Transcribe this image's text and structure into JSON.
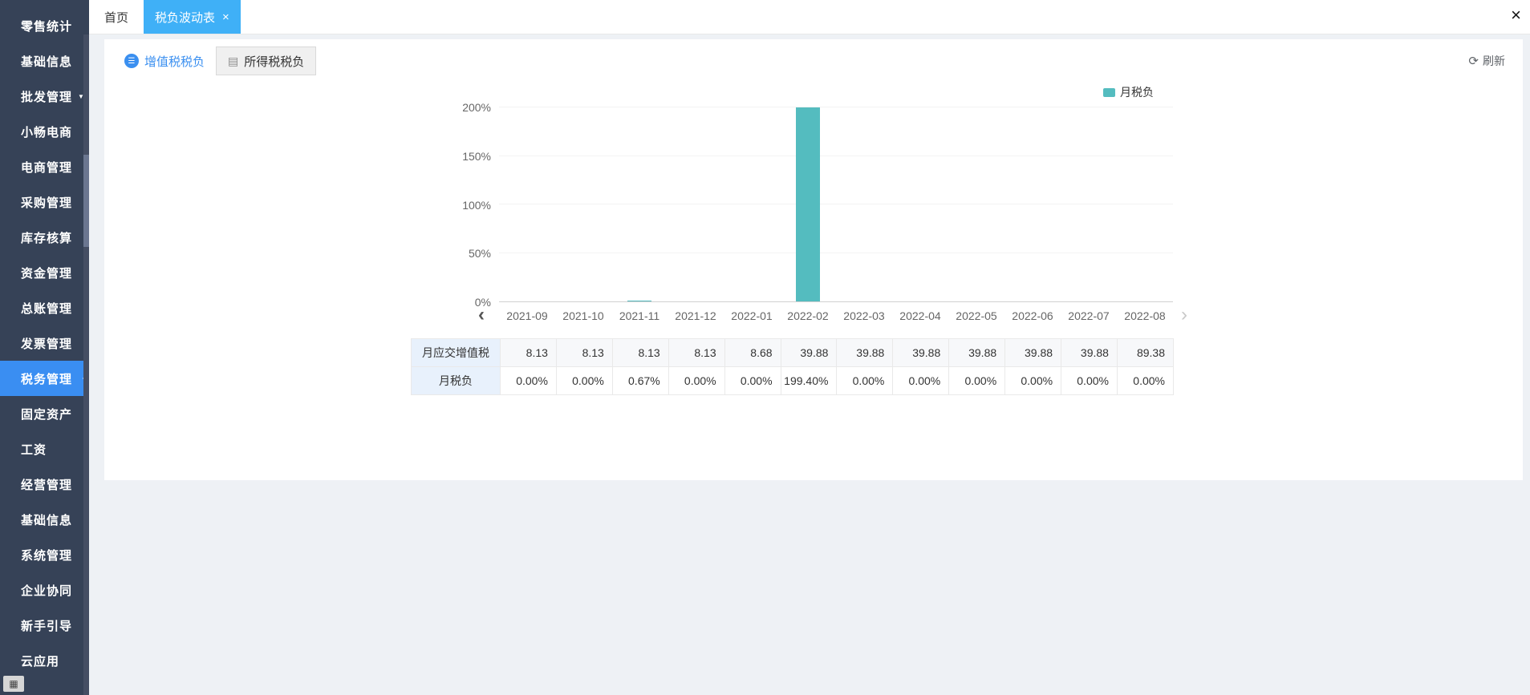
{
  "colors": {
    "sidebar_bg": "#364257",
    "sidebar_active_bg": "#3a8ef2",
    "topbar_tab_active_bg": "#3fb0f7",
    "accent_blue": "#3a8ff0",
    "bar_teal": "#54bcbf",
    "content_bg": "#eef1f5",
    "table_header_bg": "#e8f1fc"
  },
  "sidebar": {
    "items": [
      {
        "label": "零售统计"
      },
      {
        "label": "基础信息"
      },
      {
        "label": "批发管理",
        "dropdown": true
      },
      {
        "label": "小畅电商"
      },
      {
        "label": "电商管理"
      },
      {
        "label": "采购管理"
      },
      {
        "label": "库存核算"
      },
      {
        "label": "资金管理"
      },
      {
        "label": "总账管理"
      },
      {
        "label": "发票管理"
      },
      {
        "label": "税务管理",
        "active": true
      },
      {
        "label": "固定资产"
      },
      {
        "label": "工资"
      },
      {
        "label": "经营管理"
      },
      {
        "label": "基础信息"
      },
      {
        "label": "系统管理"
      },
      {
        "label": "企业协同"
      },
      {
        "label": "新手引导"
      },
      {
        "label": "云应用"
      }
    ],
    "footer_icon": "▦"
  },
  "topbar": {
    "tabs": [
      {
        "label": "首页",
        "active": false,
        "closable": false
      },
      {
        "label": "税负波动表",
        "active": true,
        "closable": true
      }
    ],
    "tab_close": "×",
    "window_close": "×"
  },
  "panel": {
    "tabs": [
      {
        "label": "增值税税负",
        "active": true
      },
      {
        "label": "所得税税负",
        "active": false
      }
    ],
    "refresh_label": "刷新",
    "refresh_icon": "⟳"
  },
  "chart_nav": {
    "prev": "‹",
    "next": "›"
  },
  "chart_data": {
    "type": "bar",
    "title": "",
    "categories": [
      "2021-09",
      "2021-10",
      "2021-11",
      "2021-12",
      "2022-01",
      "2022-02",
      "2022-03",
      "2022-04",
      "2022-05",
      "2022-06",
      "2022-07",
      "2022-08"
    ],
    "series": [
      {
        "name": "月税负",
        "values": [
          0,
          0,
          0.67,
          0,
          0,
          199.4,
          0,
          0,
          0,
          0,
          0,
          0
        ]
      }
    ],
    "xlabel": "",
    "ylabel": "",
    "ylim": [
      0,
      200
    ],
    "yticks": [
      "0%",
      "50%",
      "100%",
      "150%",
      "200%"
    ],
    "legend": [
      "月税负"
    ],
    "legend_position": "top-right",
    "grid": false,
    "bar_color": "#54bcbf"
  },
  "table": {
    "rows": [
      {
        "header": "月应交增值税",
        "values": [
          "8.13",
          "8.13",
          "8.13",
          "8.13",
          "8.68",
          "39.88",
          "39.88",
          "39.88",
          "39.88",
          "39.88",
          "39.88",
          "89.38"
        ]
      },
      {
        "header": "月税负",
        "values": [
          "0.00%",
          "0.00%",
          "0.67%",
          "0.00%",
          "0.00%",
          "199.40%",
          "0.00%",
          "0.00%",
          "0.00%",
          "0.00%",
          "0.00%",
          "0.00%"
        ]
      }
    ]
  }
}
